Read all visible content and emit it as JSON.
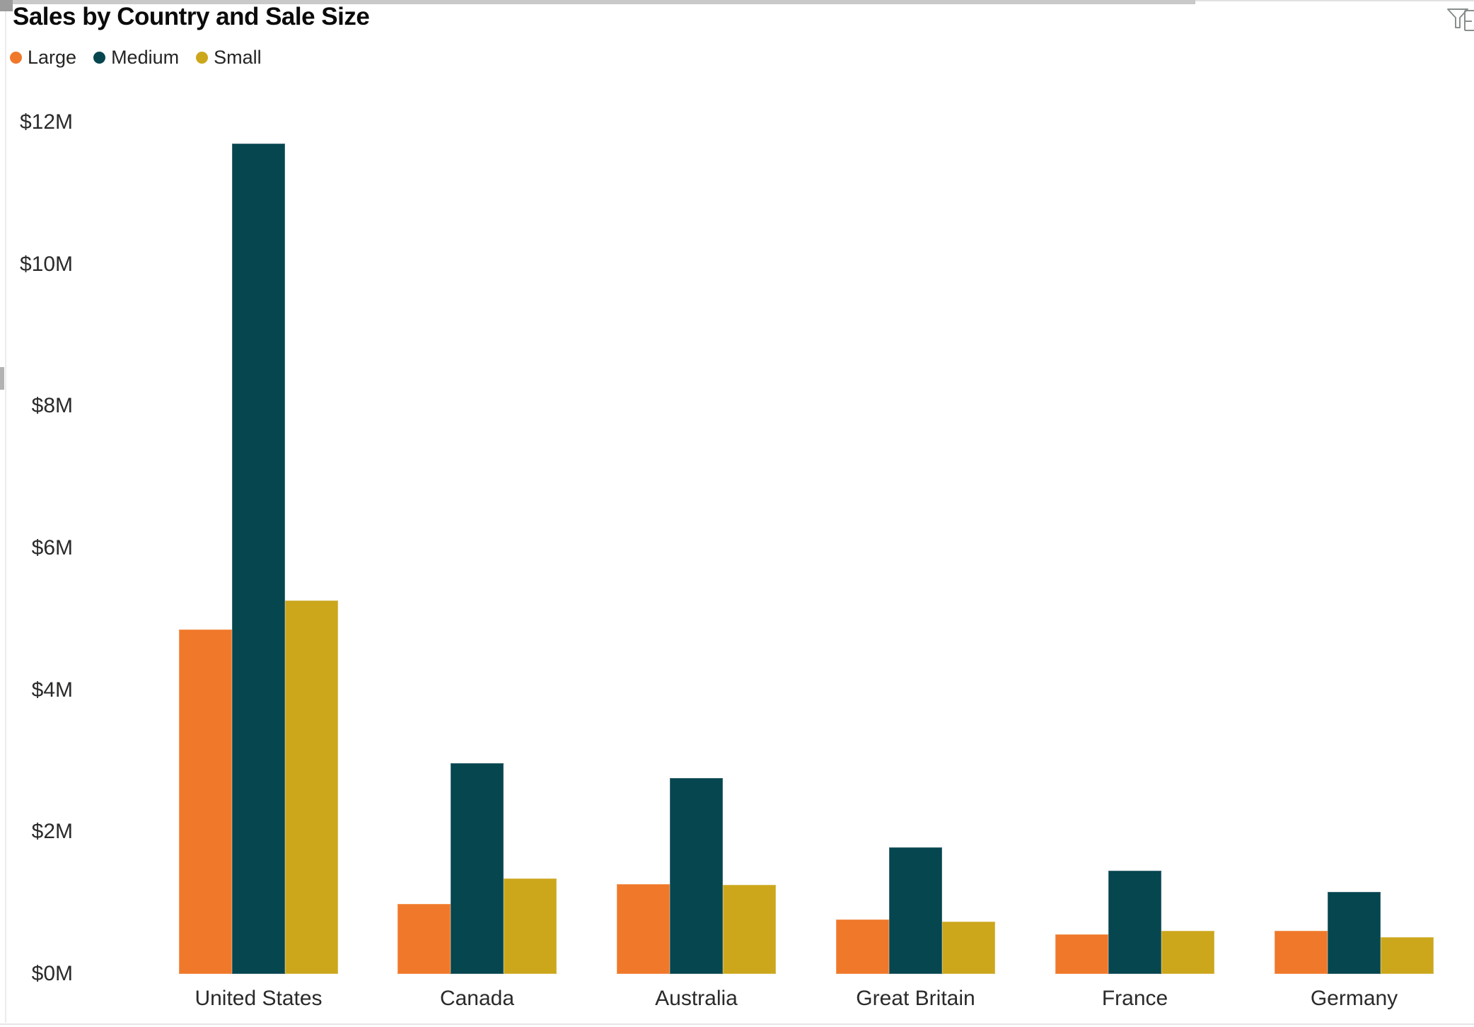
{
  "header": {
    "title": "Sales by Country and Sale Size",
    "icons": [
      {
        "name": "filter-funnel-icon"
      },
      {
        "name": "clipped-panel-icon"
      }
    ]
  },
  "legend": {
    "position": "top-left",
    "items": [
      {
        "label": "Large",
        "color": "#F0782B",
        "border": "#F39655"
      },
      {
        "label": "Medium",
        "color": "#05464F",
        "border": "#3D6B76"
      },
      {
        "label": "Small",
        "color": "#CCA71C",
        "border": "#D8BC55"
      }
    ]
  },
  "chart_data": {
    "type": "bar",
    "title": "Sales by Country and Sale Size",
    "categories": [
      "United States",
      "Canada",
      "Australia",
      "Great Britain",
      "France",
      "Germany"
    ],
    "series": [
      {
        "name": "Large",
        "color": "#F0782B",
        "border": "#F39655",
        "values": [
          4.85,
          0.99,
          1.27,
          0.77,
          0.56,
          0.61
        ]
      },
      {
        "name": "Medium",
        "color": "#05464F",
        "border": "#3D6B76",
        "values": [
          11.7,
          2.97,
          2.76,
          1.78,
          1.46,
          1.16
        ]
      },
      {
        "name": "Small",
        "color": "#CCA71C",
        "border": "#D8BC55",
        "values": [
          5.26,
          1.35,
          1.26,
          0.74,
          0.61,
          0.52
        ]
      }
    ],
    "xlabel": "",
    "ylabel": "",
    "value_unit": "$M",
    "ylim": [
      0,
      12
    ],
    "y_axis": {
      "tick_values": [
        0,
        2,
        4,
        6,
        8,
        10,
        12
      ],
      "tick_labels": [
        "$0M",
        "$2M",
        "$4M",
        "$6M",
        "$8M",
        "$10M",
        "$12M"
      ]
    },
    "grid": false,
    "legend_position": "top-left",
    "text_color": "#2b2a29",
    "icon_color": "#878f8b"
  }
}
